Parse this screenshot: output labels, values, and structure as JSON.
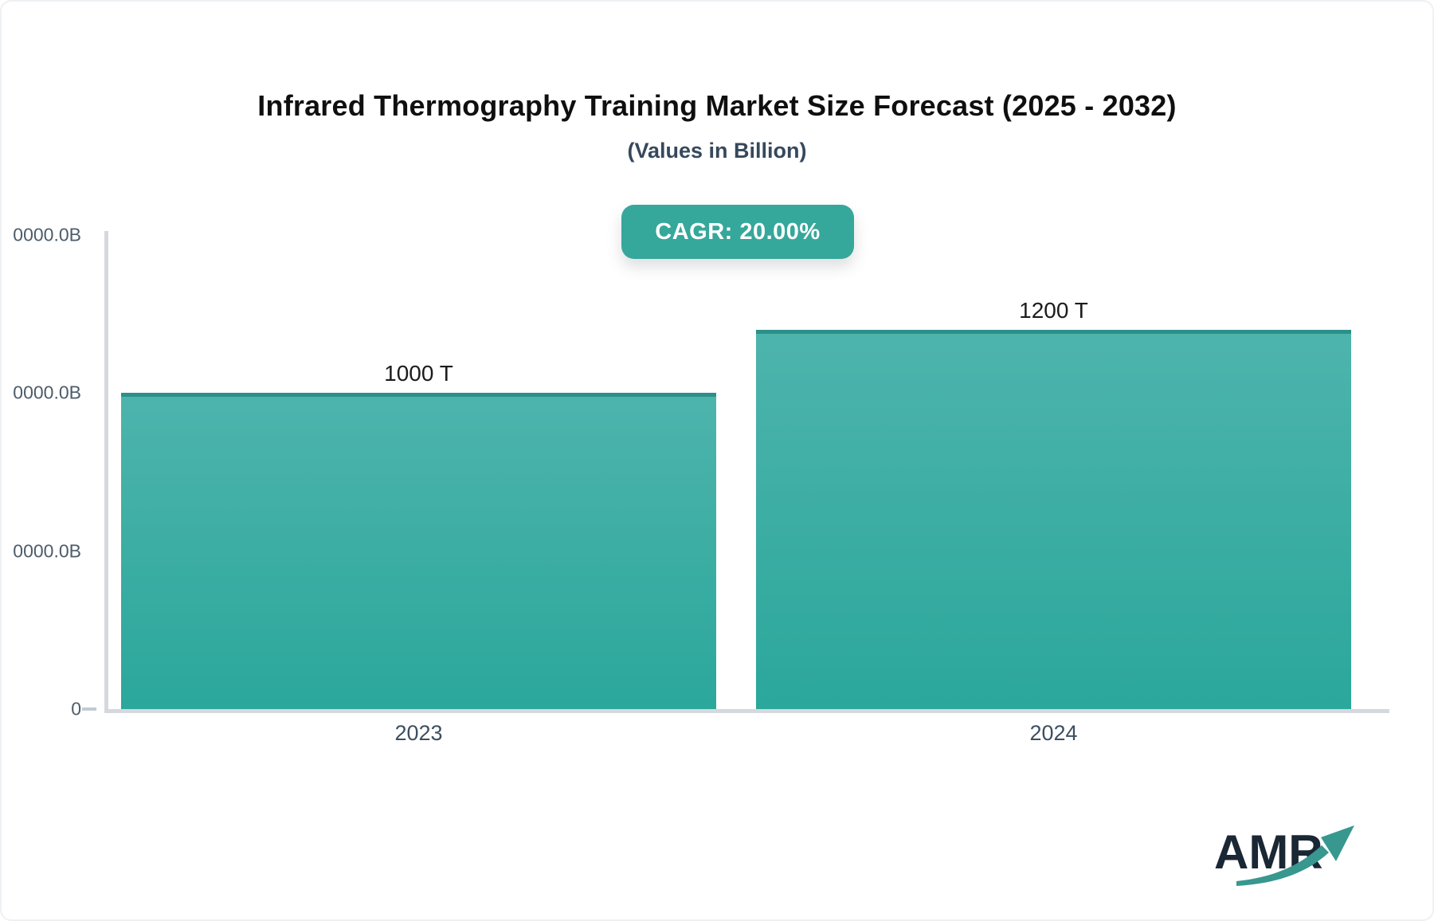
{
  "header": {
    "title": "Infrared Thermography Training Market Size Forecast (2025 - 2032)",
    "subtitle": "(Values in Billion)",
    "cagr_label": "CAGR: 20.00%"
  },
  "watermark": {
    "brand_text": "AMR"
  },
  "colors": {
    "accent_teal": "#36a79b",
    "bar_fill_top": "#4db4ac",
    "bar_fill_bottom": "#2ba79b",
    "bar_top_border": "#2b9089",
    "axis_gray": "#d5d9dd",
    "title_text": "#0f0f0f",
    "subtitle_text": "#36485c",
    "tick_text": "#4c5c6b",
    "category_text": "#3d4e60",
    "badge_text": "#ffffff",
    "logo_navy": "#1a2734",
    "logo_arrow_teal": "#38978f"
  },
  "chart_data": {
    "type": "bar",
    "categories": [
      "2023",
      "2024"
    ],
    "values": [
      1000,
      1200
    ],
    "value_labels": [
      "1000 T",
      "1200 T"
    ],
    "title": "Infrared Thermography Training Market Size Forecast (2025 - 2032)",
    "subtitle": "(Values in Billion)",
    "annotation": "CAGR: 20.00%",
    "xlabel": "",
    "ylabel": "",
    "ylim": [
      0,
      1500
    ],
    "y_tick_values": [
      1500,
      1000,
      500,
      0
    ],
    "y_tick_labels": [
      "0000.0B",
      "0000.0B",
      "0000.0B",
      "0"
    ],
    "grid": false,
    "legend": "none"
  }
}
